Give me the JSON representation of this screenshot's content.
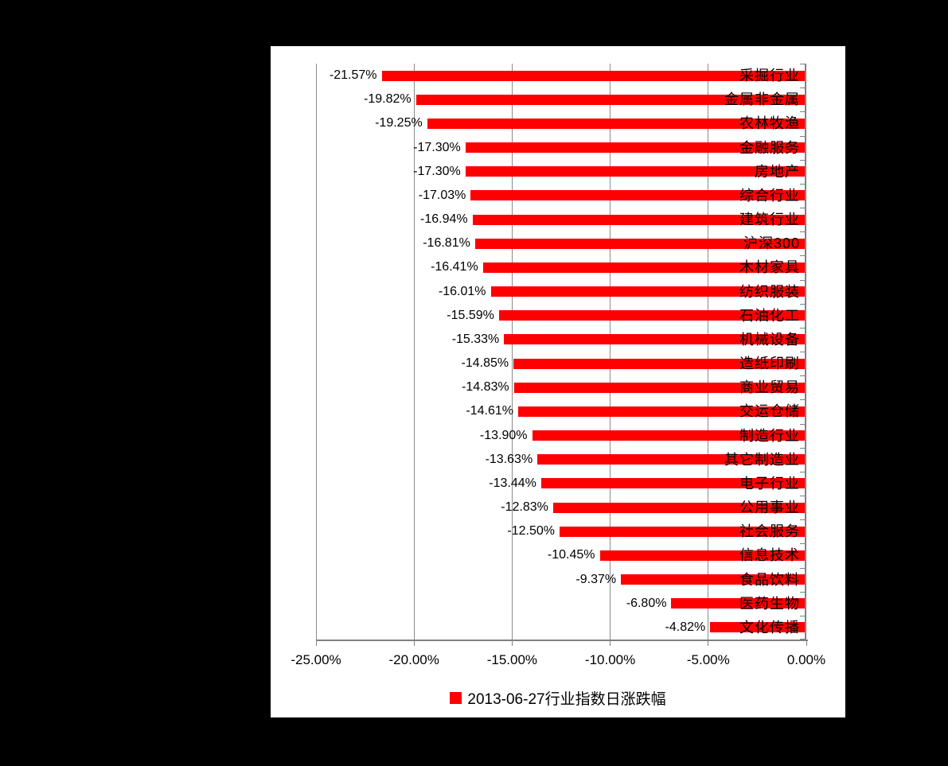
{
  "page": {
    "background_color": "#000000",
    "canvas_background_color": "#FFFFFF"
  },
  "chart_data": {
    "type": "bar",
    "orientation": "horizontal",
    "title": "",
    "categories": [
      "采掘行业",
      "金属非金属",
      "农林牧渔",
      "金融服务",
      "房地产",
      "综合行业",
      "建筑行业",
      "沪深300",
      "木材家具",
      "纺织服装",
      "石油化工",
      "机械设备",
      "造纸印刷",
      "商业贸易",
      "交运仓储",
      "制造行业",
      "其它制造业",
      "电子行业",
      "公用事业",
      "社会服务",
      "信息技术",
      "食品饮料",
      "医药生物",
      "文化传播"
    ],
    "values": [
      -21.57,
      -19.82,
      -19.25,
      -17.3,
      -17.3,
      -17.03,
      -16.94,
      -16.81,
      -16.41,
      -16.01,
      -15.59,
      -15.33,
      -14.85,
      -14.83,
      -14.61,
      -13.9,
      -13.63,
      -13.44,
      -12.83,
      -12.5,
      -10.45,
      -9.37,
      -6.8,
      -4.82
    ],
    "value_labels": [
      "-21.57%",
      "-19.82%",
      "-19.25%",
      "-17.30%",
      "-17.30%",
      "-17.03%",
      "-16.94%",
      "-16.81%",
      "-16.41%",
      "-16.01%",
      "-15.59%",
      "-15.33%",
      "-14.85%",
      "-14.83%",
      "-14.61%",
      "-13.90%",
      "-13.63%",
      "-13.44%",
      "-12.83%",
      "-12.50%",
      "-10.45%",
      "-9.37%",
      "-6.80%",
      "-4.82%"
    ],
    "xlabel": "",
    "ylabel": "",
    "xlim": [
      -25,
      0
    ],
    "x_axis": {
      "tick_values": [
        -25,
        -20,
        -15,
        -10,
        -5,
        0
      ],
      "tick_labels": [
        "-25.00%",
        "-20.00%",
        "-15.00%",
        "-10.00%",
        "-5.00%",
        "0.00%"
      ]
    },
    "grid": true,
    "legend": {
      "position": "bottom",
      "label": "2013-06-27行业指数日涨跌幅",
      "marker_color": "#FF0000"
    },
    "bar_color": "#FF0000",
    "gridline_color": "#8C8C8C",
    "axis_color": "#808080",
    "text_color": "#000000"
  }
}
